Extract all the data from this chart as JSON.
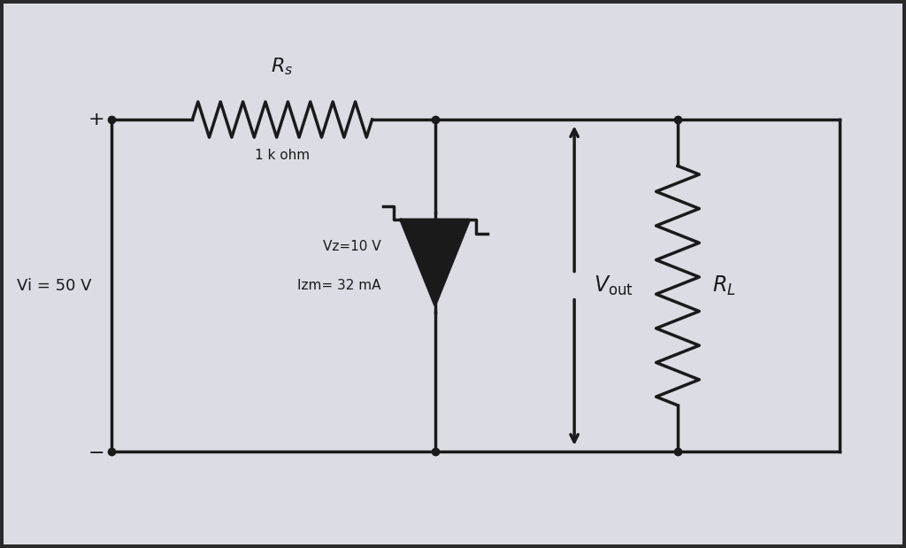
{
  "background_color": "#dcdce4",
  "outer_bg": "#2a2a2a",
  "line_color": "#1a1a1a",
  "line_width": 2.5,
  "fig_width": 10.24,
  "fig_height": 6.19,
  "labels": {
    "Rs": "$R_s$",
    "Rs_val": "1 k ohm",
    "Vi": "Vi = 50 V",
    "Vz": "Vz=10 V",
    "Izm": "Izm= 32 mA",
    "Vout": "$V_{\\mathrm{out}}$",
    "RL": "$R_L$"
  }
}
